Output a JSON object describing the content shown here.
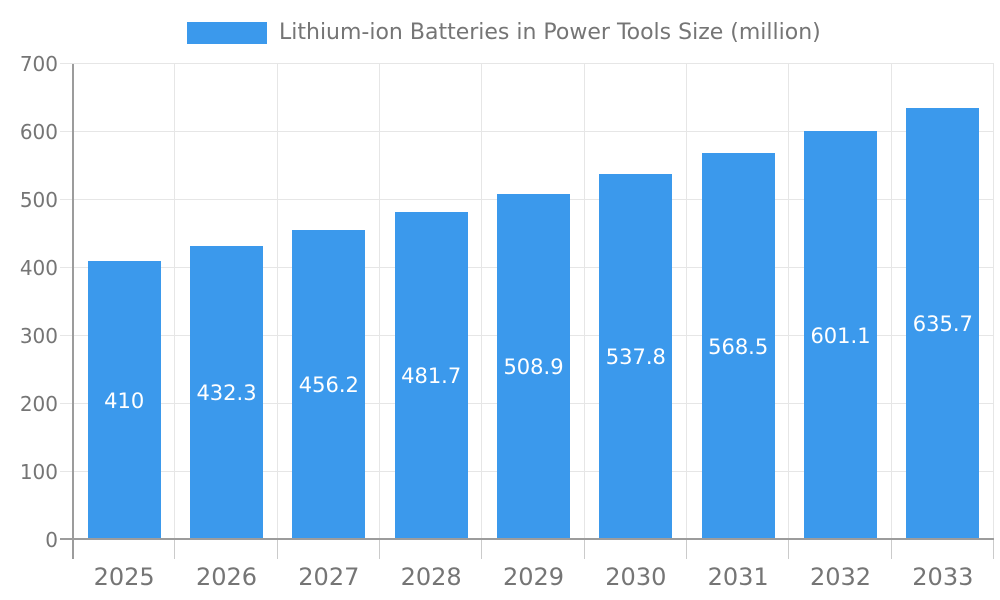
{
  "legend": {
    "label": "Lithium-ion Batteries in Power Tools Size (million)"
  },
  "colors": {
    "bar": "#3B99EC",
    "grid_line": "#E6E6E6",
    "axis_line": "#9C9C9C",
    "tick_mark": "#CBCBCB",
    "axis_text": "#757575",
    "value_label_text": "#FFFFFF",
    "background": "#FFFFFF"
  },
  "chart_data": {
    "type": "bar",
    "title": "Lithium-ion Batteries in Power Tools Size (million)",
    "categories": [
      "2025",
      "2026",
      "2027",
      "2028",
      "2029",
      "2030",
      "2031",
      "2032",
      "2033"
    ],
    "values": [
      410,
      432.3,
      456.2,
      481.7,
      508.9,
      537.8,
      568.5,
      601.1,
      635.7
    ],
    "value_labels": [
      "410",
      "432.3",
      "456.2",
      "481.7",
      "508.9",
      "537.8",
      "568.5",
      "601.1",
      "635.7"
    ],
    "xlabel": "",
    "ylabel": "",
    "ylim": [
      0,
      700
    ],
    "yticks": [
      0,
      100,
      200,
      300,
      400,
      500,
      600,
      700
    ],
    "grid": true,
    "legend_position": "top",
    "value_labels_inside_bars": true,
    "bar_color": "#3B99EC"
  }
}
